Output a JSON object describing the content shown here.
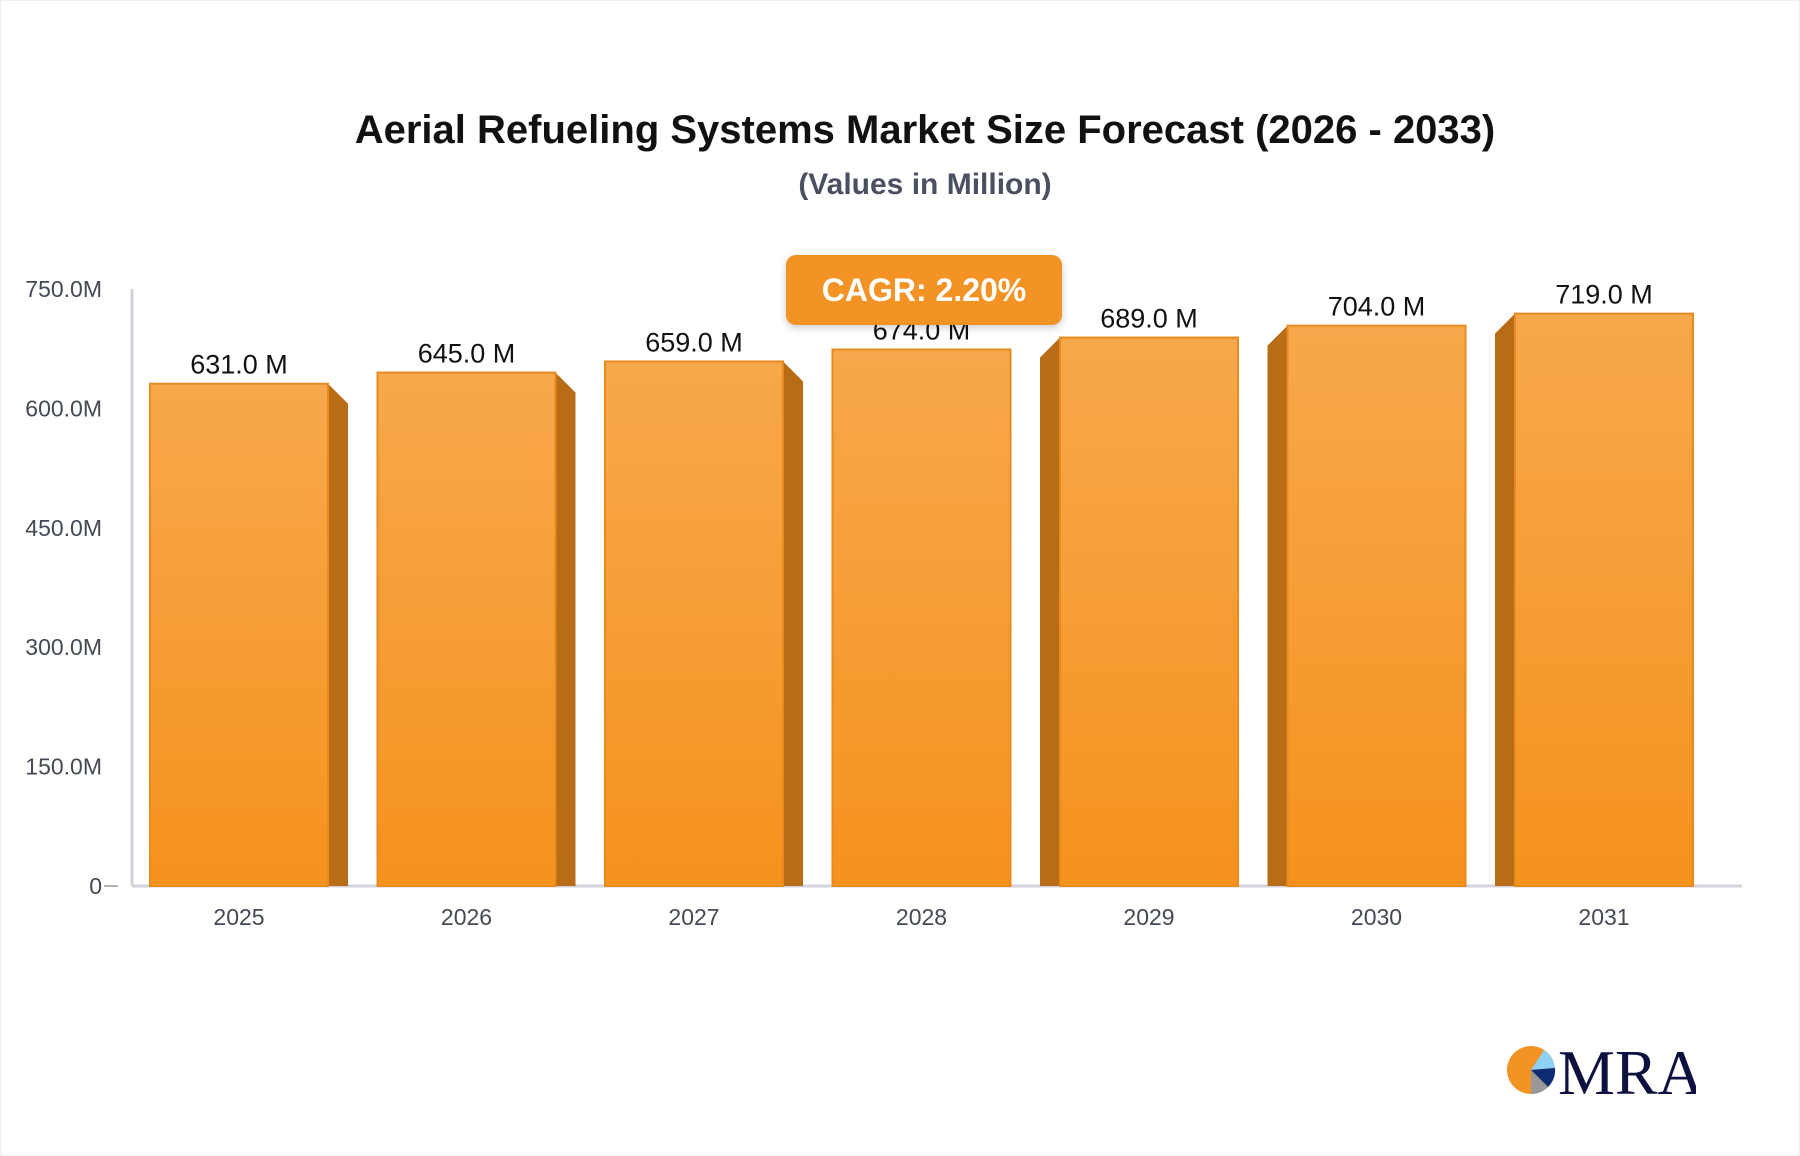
{
  "chart_data": {
    "type": "bar",
    "title": "Aerial Refueling Systems Market Size Forecast (2026 - 2033)",
    "subtitle": "(Values in Million)",
    "categories": [
      "2025",
      "2026",
      "2027",
      "2028",
      "2029",
      "2030",
      "2031"
    ],
    "values": [
      631.0,
      645.0,
      659.0,
      674.0,
      689.0,
      704.0,
      719.0
    ],
    "data_labels": [
      "631.0 M",
      "645.0 M",
      "659.0 M",
      "674.0 M",
      "689.0 M",
      "704.0 M",
      "719.0 M"
    ],
    "ylim": [
      0,
      750
    ],
    "yticks": [
      0,
      150,
      300,
      450,
      600,
      750
    ],
    "ytick_labels": [
      "0",
      "150.0M",
      "300.0M",
      "450.0M",
      "600.0M",
      "750.0M"
    ],
    "grid": false,
    "bar_color": "#f7a040",
    "bar_side_color": "#b96c16",
    "annotation": "CAGR: 2.20%"
  },
  "logo": {
    "text": "MRA",
    "colors": [
      "#f39325",
      "#8fd0f5",
      "#0d2a73",
      "#999999",
      "#0d1140"
    ]
  }
}
